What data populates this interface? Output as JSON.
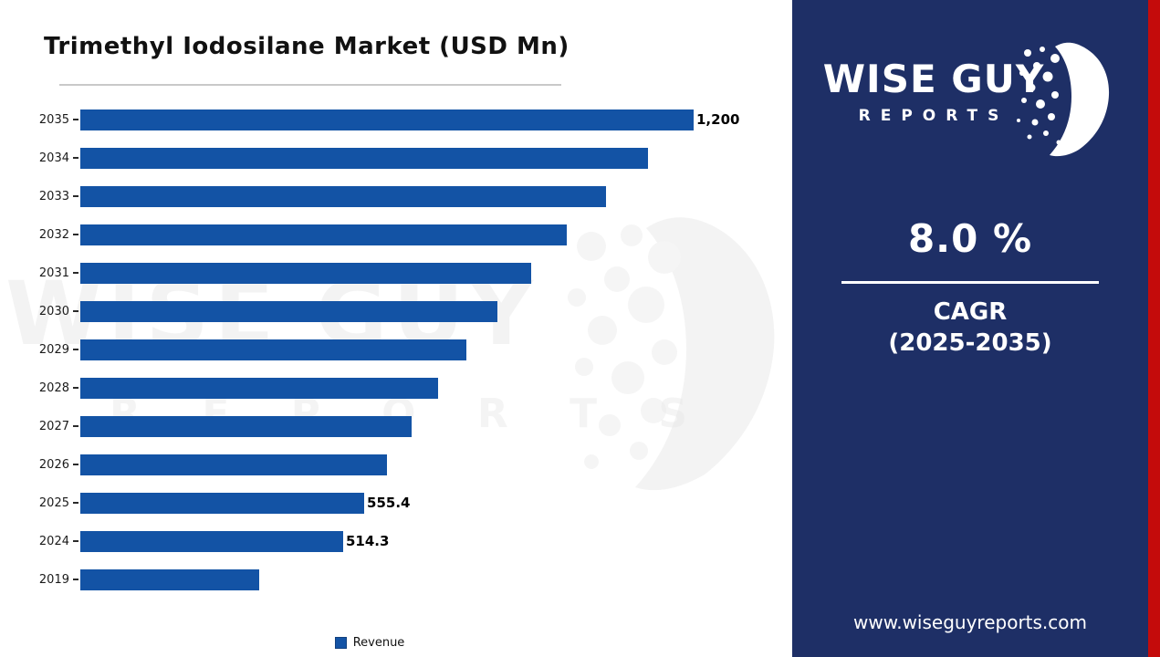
{
  "title": "Trimethyl Iodosilane Market (USD Mn)",
  "colors": {
    "bar": "#1353a5",
    "panel": "#1e2f66",
    "accent_red": "#c40b0b"
  },
  "chart_data": {
    "type": "bar",
    "orientation": "horizontal",
    "title": "Trimethyl Iodosilane Market (USD Mn)",
    "categories": [
      "2035",
      "2034",
      "2033",
      "2032",
      "2031",
      "2030",
      "2029",
      "2028",
      "2027",
      "2026",
      "2025",
      "2024",
      "2019"
    ],
    "values": [
      1200,
      1110.2,
      1027.9,
      951.8,
      881.3,
      816.0,
      755.6,
      699.6,
      647.8,
      599.8,
      555.4,
      514.3,
      350.0
    ],
    "data_labels": {
      "2035": "1,200",
      "2025": "555.4",
      "2024": "514.3"
    },
    "xlim": [
      0,
      1350
    ],
    "grid": false,
    "legend_position": "bottom-center",
    "legend": [
      "Revenue"
    ]
  },
  "watermark": {
    "line1": "WISE GUY",
    "line2": "R E P O R T S"
  },
  "panel": {
    "logo_line1": "WISE GUY",
    "logo_line2": "REPORTS",
    "cagr_value": "8.0 %",
    "cagr_label": "CAGR",
    "cagr_period": "(2025-2035)",
    "website": "www.wiseguyreports.com"
  }
}
